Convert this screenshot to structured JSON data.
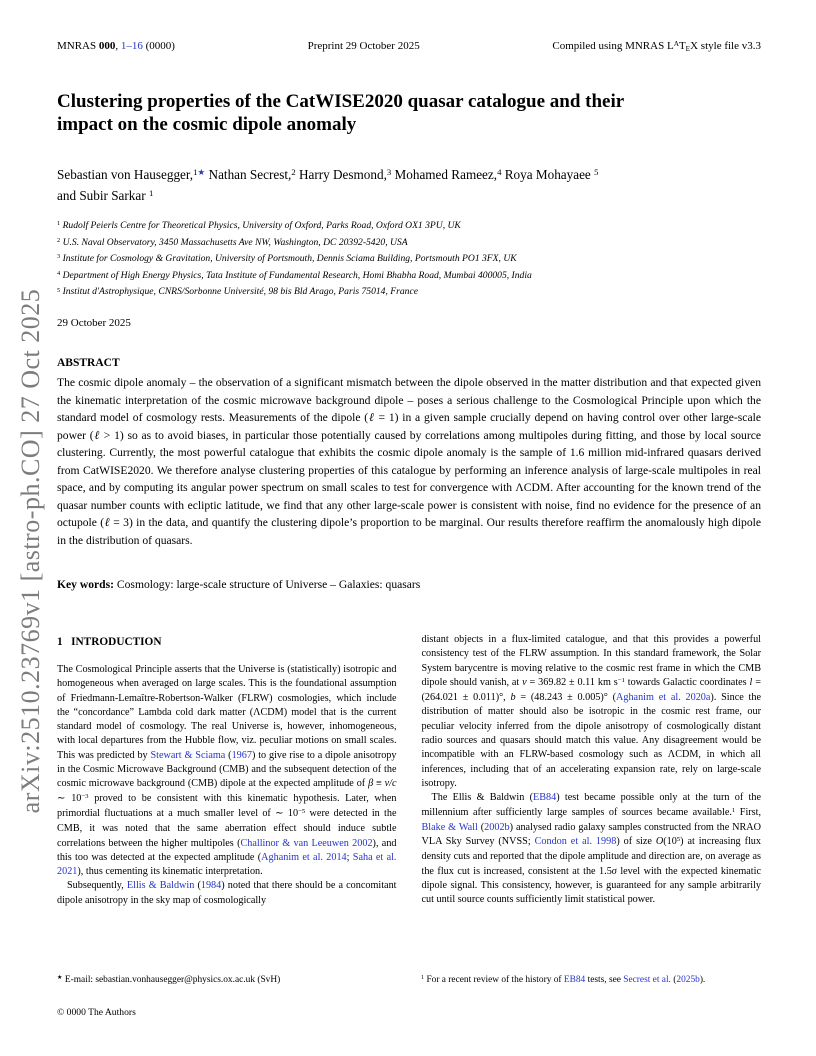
{
  "colors": {
    "link_blue": "#2635cb",
    "watermark_gray": "#7d7d7d"
  },
  "watermark": {
    "arxiv_id": "arXiv:2510.23769v1  [astro-ph.CO]  27 Oct 2025"
  },
  "header": {
    "left": [
      {
        "t": "MNRAS "
      },
      {
        "t": "000",
        "b": 1
      },
      {
        "t": ", "
      },
      {
        "t": "1–16",
        "link": 1
      },
      {
        "t": " (0000)"
      }
    ],
    "center": "Preprint 29 October 2025",
    "right": [
      {
        "t": "Compiled using MNRAS L"
      },
      {
        "t": "A",
        "sup": 1
      },
      {
        "t": "T"
      },
      {
        "t": "E",
        "sub": 1
      },
      {
        "t": "X style file v3.3"
      }
    ]
  },
  "title_segments": [
    {
      "t": "Clustering properties of the CatWISE2020 quasar catalogue and their"
    },
    {
      "br": 1
    },
    {
      "t": "impact on the cosmic dipole anomaly"
    }
  ],
  "authors_segments": [
    {
      "t": "Sebastian von Hausegger,"
    },
    {
      "t": "1",
      "sup": 1
    },
    {
      "t": "★",
      "sup": 1,
      "link": 1
    },
    {
      "t": " Nathan Secrest,"
    },
    {
      "t": "2",
      "sup": 1
    },
    {
      "t": " Harry Desmond,"
    },
    {
      "t": "3",
      "sup": 1
    },
    {
      "t": " Mohamed Rameez,"
    },
    {
      "t": "4",
      "sup": 1
    },
    {
      "t": " Roya Mohayaee "
    },
    {
      "t": "5",
      "sup": 1
    },
    {
      "br": 1
    },
    {
      "t": "and Subir Sarkar "
    },
    {
      "t": "1",
      "sup": 1
    }
  ],
  "affiliations": [
    [
      {
        "t": "1",
        "sup": 1
      },
      {
        "t": " Rudolf Peierls Centre for Theoretical Physics, University of Oxford, Parks Road, Oxford OX1 3PU, UK",
        "i": 1
      }
    ],
    [
      {
        "t": "2",
        "sup": 1
      },
      {
        "t": " U.S. Naval Observatory, 3450 Massachusetts Ave NW, Washington, DC 20392-5420, USA",
        "i": 1
      }
    ],
    [
      {
        "t": "3",
        "sup": 1
      },
      {
        "t": " Institute for Cosmology & Gravitation, University of Portsmouth, Dennis Sciama Building, Portsmouth PO1 3FX, UK",
        "i": 1
      }
    ],
    [
      {
        "t": "4",
        "sup": 1
      },
      {
        "t": " Department of High Energy Physics, Tata Institute of Fundamental Research, Homi Bhabha Road, Mumbai 400005, India",
        "i": 1
      }
    ],
    [
      {
        "t": "5",
        "sup": 1
      },
      {
        "t": " Institut d'Astrophysique, CNRS/Sorbonne Université, 98 bis Bld Arago, Paris 75014, France",
        "i": 1
      }
    ]
  ],
  "date": "29 October 2025",
  "abstract": {
    "heading": "ABSTRACT",
    "paragraph": [
      {
        "t": "The cosmic dipole anomaly – the observation of a significant mismatch between the dipole observed in the matter distribution and that expected given the kinematic interpretation of the cosmic microwave background dipole – poses a serious challenge to the Cosmological Principle upon which the standard model of cosmology rests. Measurements of the dipole ("
      },
      {
        "t": "ℓ",
        "i": 1
      },
      {
        "t": " = 1) in a given sample crucially depend on having control over other large-scale power ("
      },
      {
        "t": "ℓ",
        "i": 1
      },
      {
        "t": " > 1) so as to avoid biases, in particular those potentially caused by correlations among multipoles during fitting, and those by local source clustering. Currently, the most powerful catalogue that exhibits the cosmic dipole anomaly is the sample of 1.6 million mid-infrared quasars derived from CatWISE2020. We therefore analyse clustering properties of this catalogue by performing an inference analysis of large-scale multipoles in real space, and by computing its angular power spectrum on small scales to test for convergence with ΛCDM. After accounting for the known trend of the quasar number counts with ecliptic latitude, we find that any other large-scale power is consistent with noise, find no evidence for the presence of an octupole ("
      },
      {
        "t": "ℓ",
        "i": 1
      },
      {
        "t": " = 3) in the data, and quantify the clustering dipole’s proportion to be marginal. Our results therefore reaffirm the anomalously high dipole in the distribution of quasars."
      }
    ],
    "keywords": [
      {
        "t": "Key words:",
        "b": 1
      },
      {
        "t": "  Cosmology: large-scale structure of Universe – Galaxies: quasars"
      }
    ]
  },
  "body": {
    "section1_heading": "1   INTRODUCTION",
    "left": {
      "p1": [
        {
          "t": "The Cosmological Principle asserts that the Universe is (statistically) isotropic and homogeneous when averaged on large scales. This is the foundational assumption of Friedmann-Lemaître-Robertson-Walker (FLRW) cosmologies, which include the “concordance” Lambda cold dark matter (ΛCDM) model that is the current standard model of cosmology. The real Universe is, however, inhomogeneous, with local departures from the Hubble flow, viz. peculiar motions on small scales. This was predicted by "
        },
        {
          "t": "Stewart & Sciama",
          "link": 1
        },
        {
          "t": " ("
        },
        {
          "t": "1967",
          "link": 1
        },
        {
          "t": ") to give rise to a dipole anisotropy in the Cosmic Microwave Background (CMB) and the subsequent detection of the cosmic microwave background (CMB) dipole at the expected amplitude of "
        },
        {
          "t": "β",
          "i": 1
        },
        {
          "t": " ≡ "
        },
        {
          "t": "v/c",
          "i": 1
        },
        {
          "t": " ∼ 10"
        },
        {
          "t": "−3",
          "sup": 1
        },
        {
          "t": " proved to be consistent with this kinematic hypothesis. Later, when primordial fluctuations at a much smaller level of ∼ 10"
        },
        {
          "t": "−5",
          "sup": 1
        },
        {
          "t": " were detected in the CMB, it was noted that the same aberration effect should induce subtle correlations between the higher multipoles ("
        },
        {
          "t": "Challinor & van Leeuwen 2002",
          "link": 1
        },
        {
          "t": "), and this too was detected at the expected amplitude ("
        },
        {
          "t": "Aghanim et al. 2014",
          "link": 1
        },
        {
          "t": "; "
        },
        {
          "t": "Saha et al. 2021",
          "link": 1
        },
        {
          "t": "), thus cementing its kinematic interpretation."
        }
      ],
      "p2": [
        {
          "t": "Subsequently, "
        },
        {
          "t": "Ellis & Baldwin",
          "link": 1
        },
        {
          "t": " ("
        },
        {
          "t": "1984",
          "link": 1
        },
        {
          "t": ") noted that there should be a concomitant dipole anisotropy in the sky map of cosmologically"
        }
      ]
    },
    "right": {
      "p1": [
        {
          "t": "distant objects in a flux-limited catalogue, and that this provides a powerful consistency test of the FLRW assumption. In this standard framework, the Solar System barycentre is moving relative to the cosmic rest frame in which the CMB dipole should vanish, at "
        },
        {
          "t": "v",
          "i": 1
        },
        {
          "t": " = 369.82 ± 0.11 km s"
        },
        {
          "t": "−1",
          "sup": 1
        },
        {
          "t": " towards Galactic coordinates "
        },
        {
          "t": "l",
          "i": 1
        },
        {
          "t": " = (264.021 ± 0.011)°, "
        },
        {
          "t": "b",
          "i": 1
        },
        {
          "t": " = (48.243 ± 0.005)° ("
        },
        {
          "t": "Aghanim et al. 2020a",
          "link": 1
        },
        {
          "t": "). Since the distribution of matter should also be isotropic in the cosmic rest frame, our peculiar velocity inferred from the dipole anisotropy of cosmologically distant radio sources and quasars should match this value. Any disagreement would be incompatible with an FLRW-based cosmology such as ΛCDM, in which all inferences, including that of an accelerating expansion rate, rely on large-scale isotropy."
        }
      ],
      "p2": [
        {
          "t": "The Ellis & Baldwin ("
        },
        {
          "t": "EB84",
          "link": 1
        },
        {
          "t": ") test became possible only at the turn of the millennium after sufficiently large samples of sources became available."
        },
        {
          "t": "1",
          "sup": 1
        },
        {
          "t": " First, "
        },
        {
          "t": "Blake & Wall",
          "link": 1
        },
        {
          "t": " ("
        },
        {
          "t": "2002b",
          "link": 1
        },
        {
          "t": ") analysed radio galaxy samples constructed from the NRAO VLA Sky Survey (NVSS; "
        },
        {
          "t": "Condon et al. 1998",
          "link": 1
        },
        {
          "t": ") of size "
        },
        {
          "t": "O",
          "i": 1
        },
        {
          "t": "(10"
        },
        {
          "t": "5",
          "sup": 1
        },
        {
          "t": ") at increasing flux density cuts and reported that the dipole amplitude and direction are, on average as the flux cut is increased, consistent at the 1.5"
        },
        {
          "t": "σ",
          "i": 1
        },
        {
          "t": " level with the expected kinematic dipole signal. This consistency, however, is guaranteed for any sample arbitrarily cut until source counts sufficiently limit statistical power."
        }
      ]
    }
  },
  "footnotes": {
    "left": [
      {
        "t": "★",
        "sup": 1
      },
      {
        "t": " E-mail: sebastian.vonhausegger@physics.ox.ac.uk (SvH)"
      }
    ],
    "right": [
      {
        "t": "1",
        "sup": 1
      },
      {
        "t": " For a recent review of the history of "
      },
      {
        "t": "EB84",
        "link": 1
      },
      {
        "t": " tests, see "
      },
      {
        "t": "Secrest et al.",
        "link": 1
      },
      {
        "t": " ("
      },
      {
        "t": "2025b",
        "link": 1
      },
      {
        "t": ")."
      }
    ]
  },
  "footer": "© 0000 The Authors"
}
